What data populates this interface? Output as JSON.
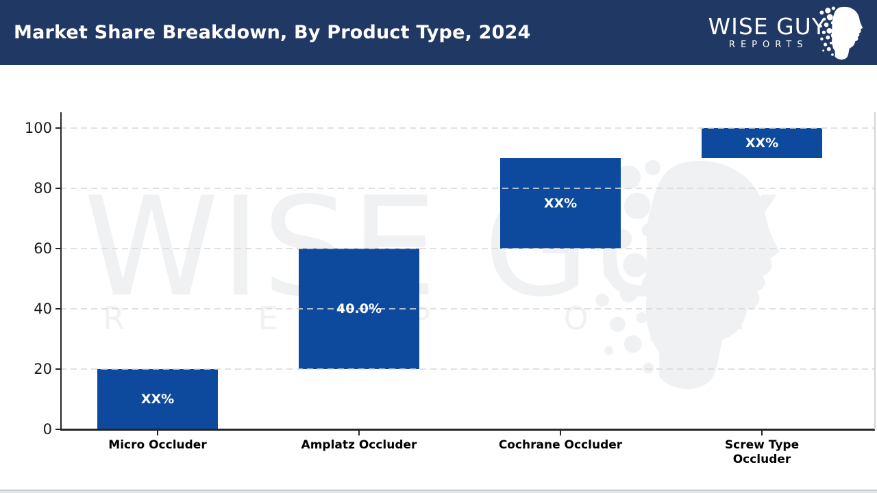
{
  "header": {
    "title": "Market Share Breakdown, By Product Type, 2024",
    "logo": {
      "primary": "WISE GUY",
      "secondary": "REPORTS"
    }
  },
  "watermark": {
    "primary": "WISE GUY",
    "secondary": "R E P O R T S"
  },
  "chart_data": {
    "type": "bar",
    "variant": "waterfall-floating-bars",
    "title": "Market Share Breakdown, By Product Type, 2024",
    "categories": [
      "Micro Occluder",
      "Amplatz Occluder",
      "Cochrane Occluder",
      "Screw Type Occluder"
    ],
    "segments": [
      {
        "category": "Micro Occluder",
        "start": 0,
        "end": 20,
        "label": "XX%"
      },
      {
        "category": "Amplatz Occluder",
        "start": 20,
        "end": 60,
        "label": "40.0%"
      },
      {
        "category": "Cochrane Occluder",
        "start": 60,
        "end": 90,
        "label": "XX%"
      },
      {
        "category": "Screw Type Occluder",
        "start": 90,
        "end": 100,
        "label": "XX%"
      }
    ],
    "xlabel": "",
    "ylabel": "",
    "ylim": [
      0,
      100
    ],
    "yticks": [
      0,
      20,
      40,
      60,
      80,
      100
    ],
    "grid": "horizontal-dashed",
    "legend": "none",
    "bar_color": "#0d4a9e",
    "bar_label_color": "#ffffff",
    "axis_color": "#262626",
    "gridline_color": "#d9d9d9",
    "tick_label_color": "#1a1a1a"
  },
  "colors": {
    "header_bg": "#1f3864",
    "page_bg": "#ffffff",
    "watermark": "#f0f1f3",
    "footer_line": "#c6cacd",
    "footer_band": "#e3e5e6"
  }
}
